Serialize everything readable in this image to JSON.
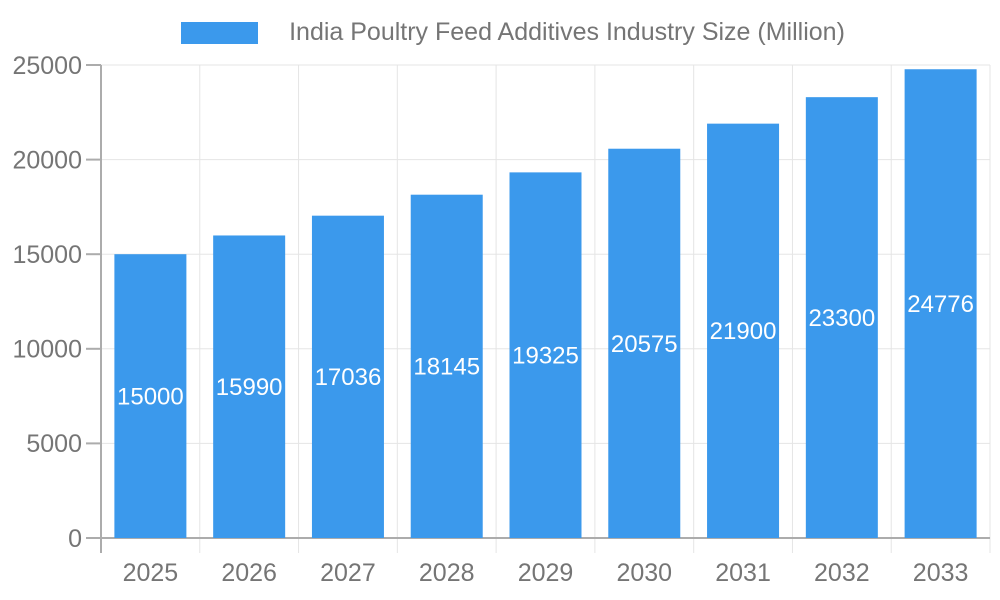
{
  "chart_data": {
    "type": "bar",
    "title": "India Poultry Feed Additives Industry Size (Million)",
    "categories": [
      "2025",
      "2026",
      "2027",
      "2028",
      "2029",
      "2030",
      "2031",
      "2032",
      "2033"
    ],
    "values": [
      15000,
      15990,
      17036,
      18145,
      19325,
      20575,
      21900,
      23300,
      24776
    ],
    "xlabel": "",
    "ylabel": "",
    "ylim": [
      0,
      25000
    ],
    "yticks": [
      0,
      5000,
      10000,
      15000,
      20000,
      25000
    ],
    "grid": true,
    "legend_position": "top",
    "value_label_position": "inside-center",
    "colors": {
      "bar": "#3B99EC",
      "value_label": "#FFFFFF",
      "tick_text": "#757575",
      "grid": "#E5E5E5",
      "axis": "#ACACAC",
      "background": "#FFFFFF"
    }
  }
}
